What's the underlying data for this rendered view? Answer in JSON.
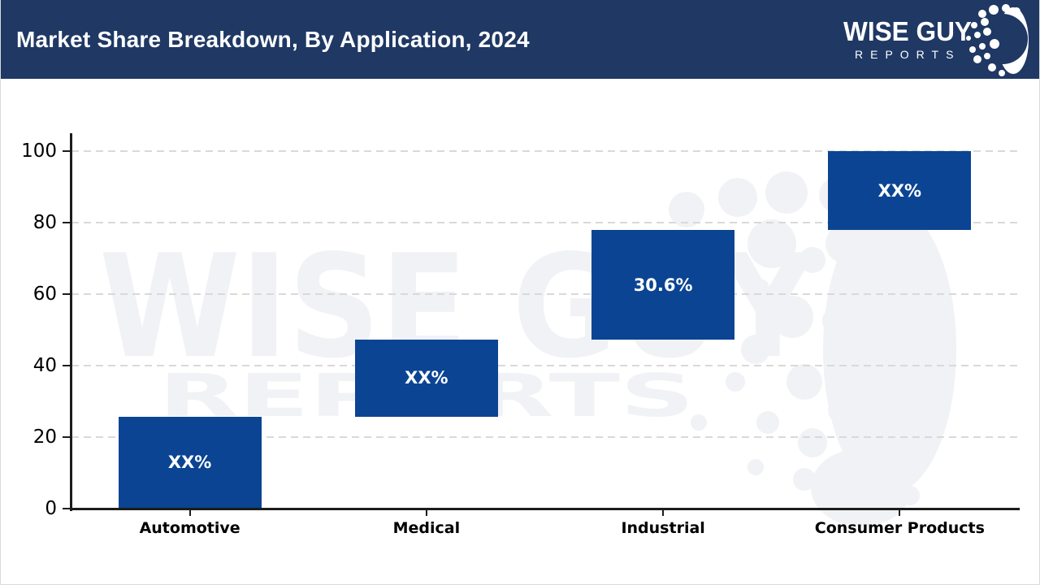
{
  "header": {
    "title": "Market Share Breakdown, By Application, 2024",
    "logo": {
      "brand": "WISE GUY",
      "sub": "REPORTS"
    }
  },
  "watermark": {
    "brand": "WISE GUY",
    "sub": "REPORTS"
  },
  "colors": {
    "header_bg": "#1f3864",
    "bar_blue": "#0b4493",
    "gridline": "#d9d9d9",
    "watermark_gray": "#f1f2f5"
  },
  "chart_data": {
    "type": "bar",
    "subtype": "waterfall",
    "title": "Market Share Breakdown, By Application, 2024",
    "categories": [
      "Automotive",
      "Medical",
      "Industrial",
      "Consumer Products"
    ],
    "segments": [
      {
        "category": "Automotive",
        "start": 0,
        "end": 25.7,
        "label": "XX%"
      },
      {
        "category": "Medical",
        "start": 25.7,
        "end": 47.3,
        "label": "XX%"
      },
      {
        "category": "Industrial",
        "start": 47.3,
        "end": 77.9,
        "label": "30.6%"
      },
      {
        "category": "Consumer Products",
        "start": 77.9,
        "end": 100,
        "label": "XX%"
      }
    ],
    "xlabel": "",
    "ylabel": "",
    "y_ticks": [
      0,
      20,
      40,
      60,
      80,
      100
    ],
    "ylim": [
      0,
      105
    ],
    "grid": "horizontal-dashed",
    "legend": "none",
    "bar_color": "#0b4493",
    "bar_label_color": "#ffffff"
  }
}
